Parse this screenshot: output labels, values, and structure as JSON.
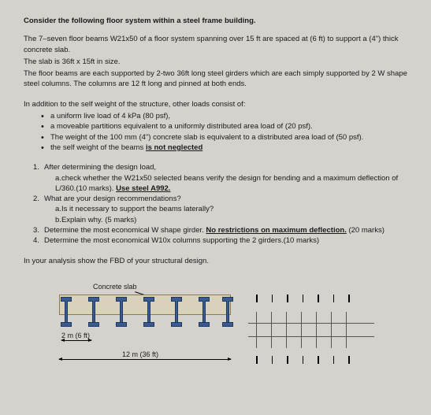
{
  "title": "Consider the following floor system within a steel frame building.",
  "intro": {
    "p1": "The 7–seven floor beams W21x50 of a floor system spanning over 15 ft are spaced at (6 ft) to support a (4\") thick concrete slab.",
    "p2": "The slab is 36ft x 15ft in size.",
    "p3": "The floor beams are each supported by 2-two 36ft long steel girders which are each simply supported by 2 W shape steel columns. The columns are 12 ft long and pinned at both ends."
  },
  "loads_intro": "In addition to the self weight of the structure, other loads consist of:",
  "loads": [
    "a uniform live load of 4 kPa (80 psf),",
    "a moveable partitions equivalent to a uniformly distributed area load of (20 psf).",
    "The weight of the 100 mm (4\") concrete slab is equivalent to a distributed area load of (50 psf).",
    "the self weight of the beams "
  ],
  "loads_extra": "is not neglected",
  "questions": {
    "q1": "After determining the design load,",
    "q1a_a": "check whether the W21x50 selected beans verify the design for bending and a maximum deflection of L/360.(10 marks). ",
    "q1a_b": "Use steel A992.",
    "q2": "What are your design recommendations?",
    "q2a": "Is it necessary to support the beams laterally?",
    "q2b": "Explain why. (5 marks)",
    "q3_a": "Determine the most economical W shape girder. ",
    "q3_b": "No restrictions on maximum deflection.",
    "q3_c": " (20 marks)",
    "q4": "Determine the most economical W10x columns supporting the 2 girders.(10 marks)"
  },
  "final": "In your analysis show the FBD of your structural design.",
  "diagram": {
    "slab_label": "Concrete slab",
    "dim_2m": "2 m (6 ft)",
    "dim_12m": "12 m (36 ft)"
  }
}
